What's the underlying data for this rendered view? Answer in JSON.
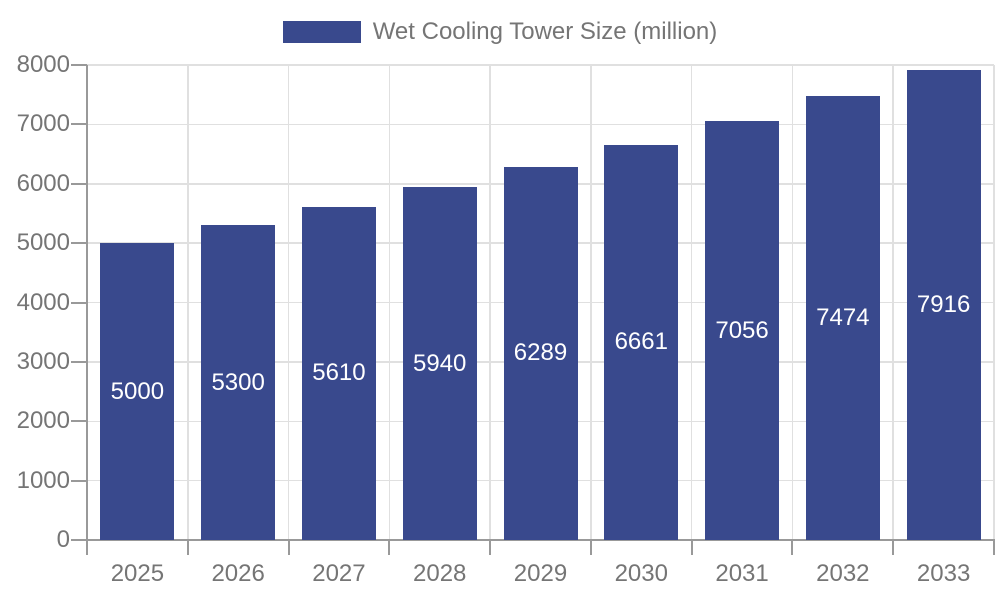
{
  "chart_data": {
    "type": "bar",
    "title": "Wet Cooling Tower Size (million)",
    "categories": [
      "2025",
      "2026",
      "2027",
      "2028",
      "2029",
      "2030",
      "2031",
      "2032",
      "2033"
    ],
    "series": [
      {
        "name": "Wet Cooling Tower Size (million)",
        "values": [
          5000,
          5300,
          5610,
          5940,
          6289,
          6661,
          7056,
          7474,
          7916
        ]
      }
    ],
    "xlabel": "",
    "ylabel": "",
    "ylim": [
      0,
      8000
    ],
    "yticks": [
      0,
      1000,
      2000,
      3000,
      4000,
      5000,
      6000,
      7000,
      8000
    ],
    "grid": true,
    "legend_position": "top-center",
    "bar_label_position": "inside-center",
    "colors": {
      "bar": "#39498D",
      "grid": "#E0E0E0",
      "axis": "#999999",
      "tick_text": "#757575",
      "bar_label_text": "#FFFFFF",
      "background": "#FFFFFF"
    }
  }
}
